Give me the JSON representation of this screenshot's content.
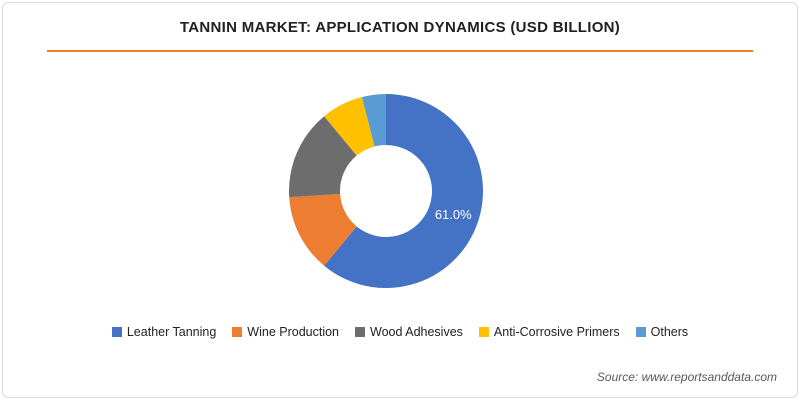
{
  "chart_data": {
    "type": "pie",
    "donut": true,
    "title": "TANNIN MARKET: APPLICATION DYNAMICS (USD BILLION)",
    "categories": [
      "Leather Tanning",
      "Wine Production",
      "Wood Adhesives",
      "Anti-Corrosive Primers",
      "Others"
    ],
    "values": [
      61.0,
      13.0,
      15.0,
      7.0,
      4.0
    ],
    "colors": [
      "#4472c4",
      "#ed7d31",
      "#6d6d6d",
      "#ffc000",
      "#5b9bd5"
    ],
    "slice_labels": [
      "61.0%",
      "",
      "",
      "",
      ""
    ],
    "start_angle_deg": 0,
    "legend_position": "bottom",
    "inner_radius_ratio": 0.47
  },
  "style": {
    "accent_line_color": "#e8822c",
    "title_color": "#212121",
    "source_color": "#595959"
  },
  "source_note": "Source: www.reportsanddata.com"
}
